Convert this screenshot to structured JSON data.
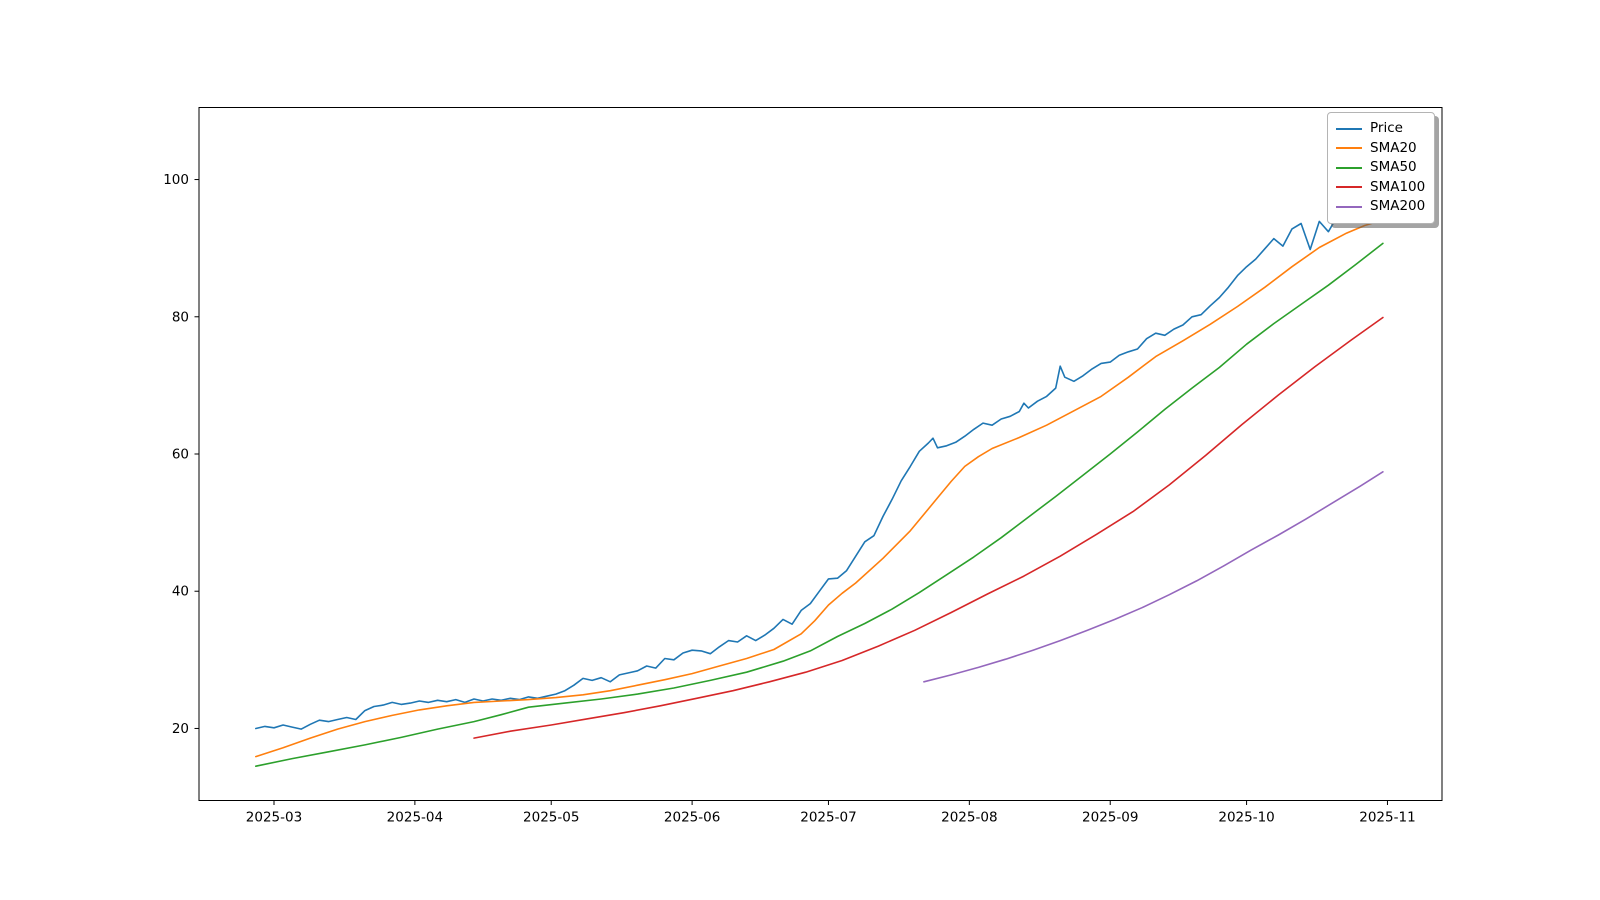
{
  "chart_data": {
    "type": "line",
    "title": "",
    "xlabel": "",
    "ylabel": "",
    "grid": false,
    "background_color": "#ffffff",
    "spine_color": "#000000",
    "x_axis": {
      "range": [
        "2025-02-12T12:00:00",
        "2025-11-13T00:00:00"
      ],
      "ticks": [
        {
          "date": "2025-03-01",
          "label": "2025-03"
        },
        {
          "date": "2025-04-01",
          "label": "2025-04"
        },
        {
          "date": "2025-05-01",
          "label": "2025-05"
        },
        {
          "date": "2025-06-01",
          "label": "2025-06"
        },
        {
          "date": "2025-07-01",
          "label": "2025-07"
        },
        {
          "date": "2025-08-01",
          "label": "2025-08"
        },
        {
          "date": "2025-09-01",
          "label": "2025-09"
        },
        {
          "date": "2025-10-01",
          "label": "2025-10"
        },
        {
          "date": "2025-11-01",
          "label": "2025-11"
        }
      ]
    },
    "y_axis": {
      "range": [
        9.5,
        110.5
      ],
      "ticks": [
        20,
        40,
        60,
        80,
        100
      ]
    },
    "legend": {
      "position": "upper right",
      "entries": [
        "Price",
        "SMA20",
        "SMA50",
        "SMA100",
        "SMA200"
      ]
    },
    "series": [
      {
        "name": "Price",
        "color": "#1f77b4",
        "points": [
          [
            "2025-02-25",
            20.0
          ],
          [
            "2025-02-27",
            20.3
          ],
          [
            "2025-03-01",
            20.1
          ],
          [
            "2025-03-03",
            20.5
          ],
          [
            "2025-03-05",
            20.2
          ],
          [
            "2025-03-07",
            19.9
          ],
          [
            "2025-03-09",
            20.6
          ],
          [
            "2025-03-11",
            21.2
          ],
          [
            "2025-03-13",
            21.0
          ],
          [
            "2025-03-15",
            21.3
          ],
          [
            "2025-03-17",
            21.6
          ],
          [
            "2025-03-19",
            21.3
          ],
          [
            "2025-03-21",
            22.6
          ],
          [
            "2025-03-23",
            23.2
          ],
          [
            "2025-03-25",
            23.4
          ],
          [
            "2025-03-27",
            23.8
          ],
          [
            "2025-03-29",
            23.5
          ],
          [
            "2025-03-31",
            23.7
          ],
          [
            "2025-04-02",
            24.0
          ],
          [
            "2025-04-04",
            23.8
          ],
          [
            "2025-04-06",
            24.1
          ],
          [
            "2025-04-08",
            23.9
          ],
          [
            "2025-04-10",
            24.2
          ],
          [
            "2025-04-12",
            23.8
          ],
          [
            "2025-04-14",
            24.3
          ],
          [
            "2025-04-16",
            24.0
          ],
          [
            "2025-04-18",
            24.3
          ],
          [
            "2025-04-20",
            24.1
          ],
          [
            "2025-04-22",
            24.4
          ],
          [
            "2025-04-24",
            24.2
          ],
          [
            "2025-04-26",
            24.6
          ],
          [
            "2025-04-28",
            24.4
          ],
          [
            "2025-04-30",
            24.7
          ],
          [
            "2025-05-02",
            25.0
          ],
          [
            "2025-05-04",
            25.5
          ],
          [
            "2025-05-06",
            26.3
          ],
          [
            "2025-05-08",
            27.3
          ],
          [
            "2025-05-10",
            27.0
          ],
          [
            "2025-05-12",
            27.4
          ],
          [
            "2025-05-14",
            26.8
          ],
          [
            "2025-05-16",
            27.8
          ],
          [
            "2025-05-18",
            28.1
          ],
          [
            "2025-05-20",
            28.4
          ],
          [
            "2025-05-22",
            29.1
          ],
          [
            "2025-05-24",
            28.8
          ],
          [
            "2025-05-26",
            30.2
          ],
          [
            "2025-05-28",
            30.0
          ],
          [
            "2025-05-30",
            31.0
          ],
          [
            "2025-06-01",
            31.4
          ],
          [
            "2025-06-03",
            31.3
          ],
          [
            "2025-06-05",
            30.9
          ],
          [
            "2025-06-07",
            31.9
          ],
          [
            "2025-06-09",
            32.8
          ],
          [
            "2025-06-11",
            32.6
          ],
          [
            "2025-06-13",
            33.5
          ],
          [
            "2025-06-15",
            32.8
          ],
          [
            "2025-06-17",
            33.6
          ],
          [
            "2025-06-19",
            34.6
          ],
          [
            "2025-06-21",
            35.9
          ],
          [
            "2025-06-23",
            35.2
          ],
          [
            "2025-06-25",
            37.2
          ],
          [
            "2025-06-27",
            38.2
          ],
          [
            "2025-06-29",
            40.0
          ],
          [
            "2025-07-01",
            41.8
          ],
          [
            "2025-07-03",
            41.9
          ],
          [
            "2025-07-05",
            43.0
          ],
          [
            "2025-07-07",
            45.1
          ],
          [
            "2025-07-09",
            47.2
          ],
          [
            "2025-07-11",
            48.1
          ],
          [
            "2025-07-13",
            50.9
          ],
          [
            "2025-07-15",
            53.4
          ],
          [
            "2025-07-17",
            56.1
          ],
          [
            "2025-07-19",
            58.2
          ],
          [
            "2025-07-21",
            60.4
          ],
          [
            "2025-07-23",
            61.6
          ],
          [
            "2025-07-24",
            62.3
          ],
          [
            "2025-07-25",
            60.9
          ],
          [
            "2025-07-27",
            61.2
          ],
          [
            "2025-07-29",
            61.7
          ],
          [
            "2025-07-31",
            62.6
          ],
          [
            "2025-08-02",
            63.6
          ],
          [
            "2025-08-04",
            64.5
          ],
          [
            "2025-08-06",
            64.2
          ],
          [
            "2025-08-08",
            65.1
          ],
          [
            "2025-08-10",
            65.5
          ],
          [
            "2025-08-12",
            66.2
          ],
          [
            "2025-08-13",
            67.4
          ],
          [
            "2025-08-14",
            66.7
          ],
          [
            "2025-08-16",
            67.7
          ],
          [
            "2025-08-18",
            68.4
          ],
          [
            "2025-08-20",
            69.6
          ],
          [
            "2025-08-21",
            72.8
          ],
          [
            "2025-08-22",
            71.2
          ],
          [
            "2025-08-24",
            70.6
          ],
          [
            "2025-08-26",
            71.4
          ],
          [
            "2025-08-28",
            72.4
          ],
          [
            "2025-08-30",
            73.2
          ],
          [
            "2025-09-01",
            73.4
          ],
          [
            "2025-09-03",
            74.4
          ],
          [
            "2025-09-05",
            74.9
          ],
          [
            "2025-09-07",
            75.3
          ],
          [
            "2025-09-09",
            76.8
          ],
          [
            "2025-09-11",
            77.6
          ],
          [
            "2025-09-13",
            77.3
          ],
          [
            "2025-09-15",
            78.2
          ],
          [
            "2025-09-17",
            78.8
          ],
          [
            "2025-09-19",
            80.0
          ],
          [
            "2025-09-21",
            80.3
          ],
          [
            "2025-09-23",
            81.6
          ],
          [
            "2025-09-25",
            82.8
          ],
          [
            "2025-09-27",
            84.3
          ],
          [
            "2025-09-29",
            86.0
          ],
          [
            "2025-10-01",
            87.3
          ],
          [
            "2025-10-03",
            88.4
          ],
          [
            "2025-10-05",
            89.9
          ],
          [
            "2025-10-07",
            91.4
          ],
          [
            "2025-10-09",
            90.3
          ],
          [
            "2025-10-11",
            92.8
          ],
          [
            "2025-10-13",
            93.6
          ],
          [
            "2025-10-15",
            89.8
          ],
          [
            "2025-10-17",
            93.9
          ],
          [
            "2025-10-19",
            92.4
          ],
          [
            "2025-10-21",
            94.7
          ],
          [
            "2025-10-23",
            95.3
          ],
          [
            "2025-10-25",
            94.2
          ],
          [
            "2025-10-27",
            95.0
          ],
          [
            "2025-10-29",
            94.1
          ],
          [
            "2025-10-31",
            94.6
          ]
        ]
      },
      {
        "name": "SMA20",
        "color": "#ff7f0e",
        "points": [
          [
            "2025-02-25",
            15.9
          ],
          [
            "2025-03-03",
            17.2
          ],
          [
            "2025-03-09",
            18.6
          ],
          [
            "2025-03-15",
            19.9
          ],
          [
            "2025-03-21",
            21.0
          ],
          [
            "2025-03-27",
            21.9
          ],
          [
            "2025-04-02",
            22.7
          ],
          [
            "2025-04-08",
            23.3
          ],
          [
            "2025-04-14",
            23.8
          ],
          [
            "2025-04-20",
            24.0
          ],
          [
            "2025-04-26",
            24.2
          ],
          [
            "2025-05-02",
            24.5
          ],
          [
            "2025-05-08",
            24.9
          ],
          [
            "2025-05-14",
            25.5
          ],
          [
            "2025-05-20",
            26.3
          ],
          [
            "2025-05-26",
            27.1
          ],
          [
            "2025-06-01",
            28.0
          ],
          [
            "2025-06-07",
            29.1
          ],
          [
            "2025-06-13",
            30.2
          ],
          [
            "2025-06-19",
            31.5
          ],
          [
            "2025-06-25",
            33.8
          ],
          [
            "2025-06-28",
            35.7
          ],
          [
            "2025-07-01",
            38.0
          ],
          [
            "2025-07-04",
            39.7
          ],
          [
            "2025-07-07",
            41.2
          ],
          [
            "2025-07-13",
            44.8
          ],
          [
            "2025-07-19",
            48.8
          ],
          [
            "2025-07-25",
            53.6
          ],
          [
            "2025-07-28",
            56.0
          ],
          [
            "2025-07-31",
            58.2
          ],
          [
            "2025-08-03",
            59.6
          ],
          [
            "2025-08-06",
            60.8
          ],
          [
            "2025-08-12",
            62.4
          ],
          [
            "2025-08-18",
            64.2
          ],
          [
            "2025-08-24",
            66.3
          ],
          [
            "2025-08-30",
            68.4
          ],
          [
            "2025-09-05",
            71.2
          ],
          [
            "2025-09-11",
            74.2
          ],
          [
            "2025-09-17",
            76.5
          ],
          [
            "2025-09-23",
            78.9
          ],
          [
            "2025-09-29",
            81.5
          ],
          [
            "2025-10-05",
            84.3
          ],
          [
            "2025-10-11",
            87.3
          ],
          [
            "2025-10-17",
            90.1
          ],
          [
            "2025-10-23",
            92.2
          ],
          [
            "2025-10-27",
            93.3
          ],
          [
            "2025-10-31",
            94.1
          ]
        ]
      },
      {
        "name": "SMA50",
        "color": "#2ca02c",
        "points": [
          [
            "2025-02-25",
            14.5
          ],
          [
            "2025-03-05",
            15.6
          ],
          [
            "2025-03-13",
            16.6
          ],
          [
            "2025-03-21",
            17.6
          ],
          [
            "2025-03-29",
            18.7
          ],
          [
            "2025-04-06",
            19.9
          ],
          [
            "2025-04-14",
            21.0
          ],
          [
            "2025-04-20",
            22.0
          ],
          [
            "2025-04-26",
            23.1
          ],
          [
            "2025-05-04",
            23.7
          ],
          [
            "2025-05-12",
            24.3
          ],
          [
            "2025-05-20",
            25.0
          ],
          [
            "2025-05-28",
            25.9
          ],
          [
            "2025-06-05",
            27.0
          ],
          [
            "2025-06-13",
            28.2
          ],
          [
            "2025-06-21",
            29.8
          ],
          [
            "2025-06-27",
            31.3
          ],
          [
            "2025-07-03",
            33.4
          ],
          [
            "2025-07-09",
            35.3
          ],
          [
            "2025-07-15",
            37.4
          ],
          [
            "2025-07-21",
            39.8
          ],
          [
            "2025-07-27",
            42.4
          ],
          [
            "2025-08-02",
            45.0
          ],
          [
            "2025-08-08",
            47.8
          ],
          [
            "2025-08-14",
            50.8
          ],
          [
            "2025-08-20",
            53.8
          ],
          [
            "2025-08-26",
            56.9
          ],
          [
            "2025-09-01",
            60.0
          ],
          [
            "2025-09-07",
            63.2
          ],
          [
            "2025-09-13",
            66.5
          ],
          [
            "2025-09-19",
            69.6
          ],
          [
            "2025-09-25",
            72.6
          ],
          [
            "2025-10-01",
            76.0
          ],
          [
            "2025-10-07",
            79.0
          ],
          [
            "2025-10-13",
            81.8
          ],
          [
            "2025-10-19",
            84.6
          ],
          [
            "2025-10-25",
            87.6
          ],
          [
            "2025-10-31",
            90.7
          ]
        ]
      },
      {
        "name": "SMA100",
        "color": "#d62728",
        "points": [
          [
            "2025-04-14",
            18.6
          ],
          [
            "2025-04-22",
            19.6
          ],
          [
            "2025-05-01",
            20.5
          ],
          [
            "2025-05-09",
            21.4
          ],
          [
            "2025-05-17",
            22.3
          ],
          [
            "2025-05-25",
            23.3
          ],
          [
            "2025-06-02",
            24.4
          ],
          [
            "2025-06-10",
            25.5
          ],
          [
            "2025-06-18",
            26.8
          ],
          [
            "2025-06-26",
            28.2
          ],
          [
            "2025-07-04",
            29.9
          ],
          [
            "2025-07-12",
            32.0
          ],
          [
            "2025-07-20",
            34.3
          ],
          [
            "2025-07-28",
            36.9
          ],
          [
            "2025-08-05",
            39.6
          ],
          [
            "2025-08-13",
            42.2
          ],
          [
            "2025-08-21",
            45.1
          ],
          [
            "2025-08-29",
            48.3
          ],
          [
            "2025-09-06",
            51.6
          ],
          [
            "2025-09-14",
            55.5
          ],
          [
            "2025-09-22",
            59.8
          ],
          [
            "2025-09-30",
            64.3
          ],
          [
            "2025-10-08",
            68.6
          ],
          [
            "2025-10-16",
            72.7
          ],
          [
            "2025-10-24",
            76.6
          ],
          [
            "2025-10-31",
            79.9
          ]
        ]
      },
      {
        "name": "SMA200",
        "color": "#9467bd",
        "points": [
          [
            "2025-07-22",
            26.8
          ],
          [
            "2025-07-28",
            27.8
          ],
          [
            "2025-08-03",
            28.9
          ],
          [
            "2025-08-09",
            30.1
          ],
          [
            "2025-08-15",
            31.4
          ],
          [
            "2025-08-21",
            32.8
          ],
          [
            "2025-08-27",
            34.3
          ],
          [
            "2025-09-02",
            35.9
          ],
          [
            "2025-09-08",
            37.6
          ],
          [
            "2025-09-14",
            39.5
          ],
          [
            "2025-09-20",
            41.5
          ],
          [
            "2025-09-26",
            43.7
          ],
          [
            "2025-10-02",
            46.0
          ],
          [
            "2025-10-08",
            48.2
          ],
          [
            "2025-10-14",
            50.5
          ],
          [
            "2025-10-20",
            52.9
          ],
          [
            "2025-10-26",
            55.3
          ],
          [
            "2025-10-31",
            57.4
          ]
        ]
      }
    ]
  }
}
